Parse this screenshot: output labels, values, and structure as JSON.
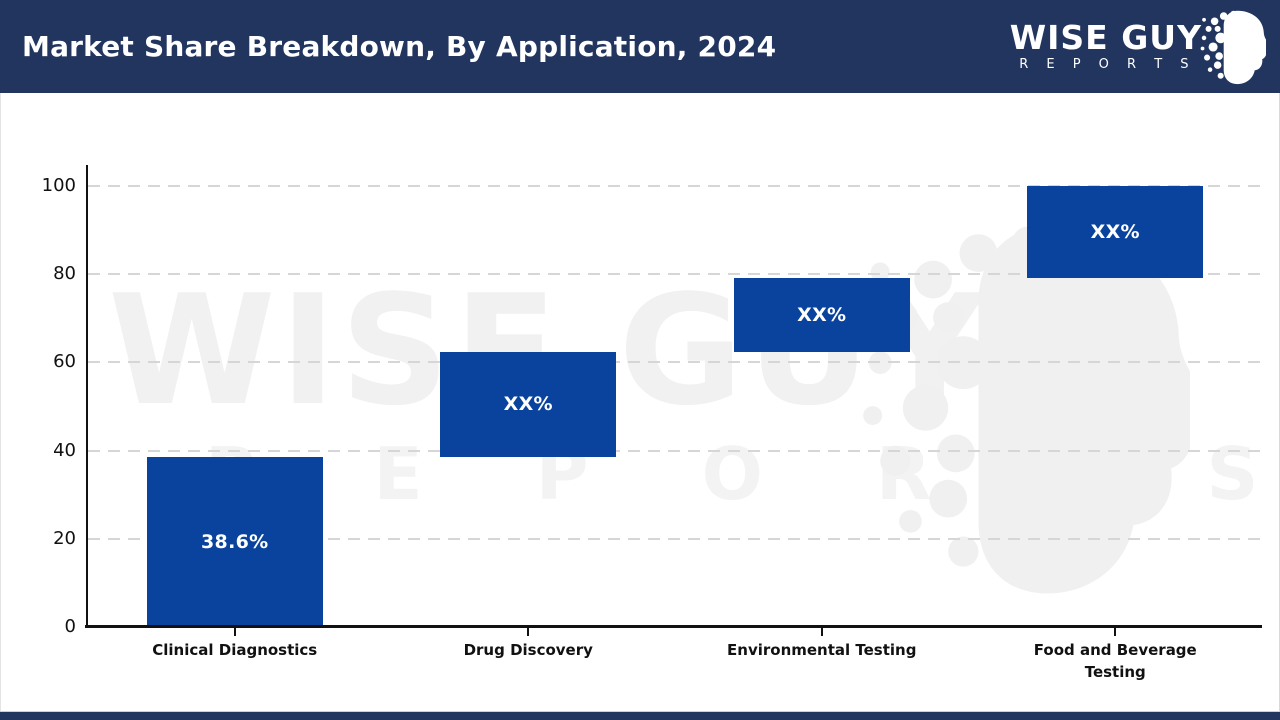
{
  "header": {
    "logo": {
      "line1": "WISE GUY",
      "line2": "R E P O R T S"
    }
  },
  "watermark": {
    "line1": "WISE GUY",
    "line2": "R E P O R T S"
  },
  "colors": {
    "header_navy": "#22355f",
    "bar_blue": "#09439d",
    "grid_gray": "#d6d6d6",
    "watermark_gray": "#f1f1f1",
    "axis_black": "#111111",
    "label_white": "#ffffff"
  },
  "chart_data": {
    "type": "bar",
    "subtype": "waterfall",
    "title": "Market Share Breakdown, By Application, 2024",
    "categories": [
      "Clinical Diagnostics",
      "Drug Discovery",
      "Environmental Testing",
      "Food and Beverage Testing"
    ],
    "series": [
      {
        "name": "Market Share",
        "segments": [
          {
            "category": "Clinical Diagnostics",
            "start": 0,
            "end": 38.6,
            "label": "38.6%"
          },
          {
            "category": "Drug Discovery",
            "start": 38.6,
            "end": 62.4,
            "label": "XX%"
          },
          {
            "category": "Environmental Testing",
            "start": 62.4,
            "end": 79.1,
            "label": "XX%"
          },
          {
            "category": "Food and Beverage Testing",
            "start": 79.1,
            "end": 100,
            "label": "XX%"
          }
        ]
      }
    ],
    "xlabel": "",
    "ylabel": "",
    "ylim": [
      0,
      105
    ],
    "yticks": [
      0,
      20,
      40,
      60,
      80,
      100
    ],
    "grid": "dashed-horizontal",
    "legend": "none"
  }
}
